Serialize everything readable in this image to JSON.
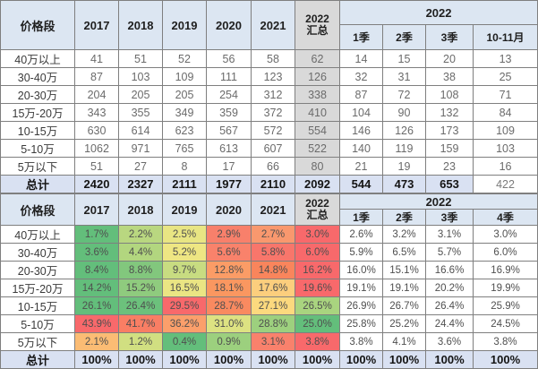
{
  "colors": {
    "header_blue": "#dce6f2",
    "summary_gray": "#d9d9d9",
    "total_row_blue": "#d9e1f2",
    "triangle_green": "#2f9e44",
    "grid_border": "#7f7f7f",
    "heat_min_green": "#63BE7B",
    "heat_mid_yellow": "#FFEB84",
    "heat_max_red": "#F8696B"
  },
  "tables": [
    {
      "id": "volume",
      "header": {
        "label": "价格段",
        "years": [
          "2017",
          "2018",
          "2019",
          "2020",
          "2021"
        ],
        "summary_lines": [
          "2022",
          "汇总"
        ],
        "group": "2022",
        "subs": [
          "1季",
          "2季",
          "3季",
          "10-11月"
        ]
      },
      "style": {
        "summary_gray": true,
        "triangle_col": 9,
        "total_last_plain": true
      },
      "rows": [
        {
          "label": "40万以上",
          "values": [
            "41",
            "51",
            "52",
            "56",
            "58",
            "62",
            "14",
            "15",
            "20",
            "13"
          ]
        },
        {
          "label": "30-40万",
          "values": [
            "87",
            "103",
            "109",
            "111",
            "123",
            "126",
            "32",
            "31",
            "38",
            "25"
          ]
        },
        {
          "label": "20-30万",
          "values": [
            "204",
            "205",
            "205",
            "254",
            "312",
            "338",
            "87",
            "72",
            "108",
            "71"
          ]
        },
        {
          "label": "15万-20万",
          "values": [
            "343",
            "355",
            "349",
            "359",
            "372",
            "410",
            "104",
            "90",
            "132",
            "84"
          ]
        },
        {
          "label": "10-15万",
          "values": [
            "630",
            "614",
            "623",
            "567",
            "572",
            "554",
            "146",
            "126",
            "173",
            "109"
          ]
        },
        {
          "label": "5-10万",
          "values": [
            "1062",
            "971",
            "765",
            "613",
            "607",
            "522",
            "140",
            "119",
            "159",
            "103"
          ]
        },
        {
          "label": "5万以下",
          "values": [
            "51",
            "27",
            "8",
            "17",
            "66",
            "80",
            "21",
            "19",
            "23",
            "16"
          ]
        }
      ],
      "total": {
        "label": "总计",
        "values": [
          "2420",
          "2327",
          "2111",
          "1977",
          "2110",
          "2092",
          "544",
          "473",
          "653",
          "422"
        ]
      }
    },
    {
      "id": "share",
      "header": {
        "label": "价格段",
        "years": [
          "2017",
          "2018",
          "2019",
          "2020",
          "2021"
        ],
        "summary_lines": [
          "2022",
          "汇总"
        ],
        "group": "2022",
        "subs": [
          "1季",
          "2季",
          "3季",
          "4季"
        ]
      },
      "style": {
        "heat": true
      },
      "rows": [
        {
          "label": "40万以上",
          "values": [
            "1.7%",
            "2.2%",
            "2.5%",
            "2.9%",
            "2.7%",
            "3.0%",
            "2.6%",
            "3.2%",
            "3.1%",
            "3.0%"
          ],
          "cell_colors": [
            "#63BE7B",
            "#B9D780",
            "#E8E583",
            "#F8806B",
            "#F9986E",
            "#F8696B"
          ]
        },
        {
          "label": "30-40万",
          "values": [
            "3.6%",
            "4.4%",
            "5.2%",
            "5.6%",
            "5.8%",
            "6.0%",
            "5.9%",
            "6.5%",
            "5.7%",
            "6.0%"
          ],
          "cell_colors": [
            "#63BE7B",
            "#B2D67F",
            "#EEE683",
            "#F9826B",
            "#F8766B",
            "#F8696B"
          ]
        },
        {
          "label": "20-30万",
          "values": [
            "8.4%",
            "8.8%",
            "9.7%",
            "12.8%",
            "14.8%",
            "16.2%",
            "16.0%",
            "15.1%",
            "16.6%",
            "16.9%"
          ],
          "cell_colors": [
            "#63BE7B",
            "#82C77D",
            "#C8DC81",
            "#FB9C66",
            "#F9855C",
            "#F8696B"
          ]
        },
        {
          "label": "15万-20万",
          "values": [
            "14.2%",
            "15.2%",
            "16.5%",
            "18.1%",
            "17.6%",
            "19.6%",
            "19.1%",
            "19.1%",
            "20.2%",
            "19.9%"
          ],
          "cell_colors": [
            "#63BE7B",
            "#8FCB7E",
            "#EAE583",
            "#FA9760",
            "#FCCE7D",
            "#F8696B"
          ]
        },
        {
          "label": "10-15万",
          "values": [
            "26.1%",
            "26.4%",
            "29.5%",
            "28.7%",
            "27.1%",
            "26.5%",
            "26.9%",
            "26.7%",
            "26.4%",
            "25.9%"
          ],
          "cell_colors": [
            "#63BE7B",
            "#6CC17C",
            "#F8696B",
            "#F98A60",
            "#FCD97E",
            "#A9D47F"
          ]
        },
        {
          "label": "5-10万",
          "values": [
            "43.9%",
            "41.7%",
            "36.2%",
            "31.0%",
            "28.8%",
            "25.0%",
            "25.8%",
            "25.2%",
            "24.4%",
            "24.5%"
          ],
          "cell_colors": [
            "#F8696B",
            "#F97E64",
            "#FB9F6B",
            "#DDE282",
            "#9DD07E",
            "#63BE7B"
          ]
        },
        {
          "label": "5万以下",
          "values": [
            "2.1%",
            "1.2%",
            "0.4%",
            "0.9%",
            "3.1%",
            "3.8%",
            "3.8%",
            "4.1%",
            "3.6%",
            "3.8%"
          ],
          "cell_colors": [
            "#FBBC74",
            "#D1DF81",
            "#63BE7B",
            "#9CD07E",
            "#F9816C",
            "#F8696B"
          ]
        }
      ],
      "total": {
        "label": "总计",
        "values": [
          "100%",
          "100%",
          "100%",
          "100%",
          "100%",
          "100%",
          "100%",
          "100%",
          "100%",
          "100%"
        ]
      }
    }
  ],
  "chart_data": [
    {
      "type": "table",
      "columns": [
        "价格段",
        "2017",
        "2018",
        "2019",
        "2020",
        "2021",
        "2022汇总",
        "2022 1季",
        "2022 2季",
        "2022 3季",
        "2022 10-11月"
      ],
      "rows": [
        [
          "40万以上",
          41,
          51,
          52,
          56,
          58,
          62,
          14,
          15,
          20,
          13
        ],
        [
          "30-40万",
          87,
          103,
          109,
          111,
          123,
          126,
          32,
          31,
          38,
          25
        ],
        [
          "20-30万",
          204,
          205,
          205,
          254,
          312,
          338,
          87,
          72,
          108,
          71
        ],
        [
          "15万-20万",
          343,
          355,
          349,
          359,
          372,
          410,
          104,
          90,
          132,
          84
        ],
        [
          "10-15万",
          630,
          614,
          623,
          567,
          572,
          554,
          146,
          126,
          173,
          109
        ],
        [
          "5-10万",
          1062,
          971,
          765,
          613,
          607,
          522,
          140,
          119,
          159,
          103
        ],
        [
          "5万以下",
          51,
          27,
          8,
          17,
          66,
          80,
          21,
          19,
          23,
          16
        ],
        [
          "总计",
          2420,
          2327,
          2111,
          1977,
          2110,
          2092,
          544,
          473,
          653,
          422
        ]
      ]
    },
    {
      "type": "table",
      "columns": [
        "价格段",
        "2017",
        "2018",
        "2019",
        "2020",
        "2021",
        "2022汇总",
        "2022 1季",
        "2022 2季",
        "2022 3季",
        "2022 4季"
      ],
      "rows": [
        [
          "40万以上",
          "1.7%",
          "2.2%",
          "2.5%",
          "2.9%",
          "2.7%",
          "3.0%",
          "2.6%",
          "3.2%",
          "3.1%",
          "3.0%"
        ],
        [
          "30-40万",
          "3.6%",
          "4.4%",
          "5.2%",
          "5.6%",
          "5.8%",
          "6.0%",
          "5.9%",
          "6.5%",
          "5.7%",
          "6.0%"
        ],
        [
          "20-30万",
          "8.4%",
          "8.8%",
          "9.7%",
          "12.8%",
          "14.8%",
          "16.2%",
          "16.0%",
          "15.1%",
          "16.6%",
          "16.9%"
        ],
        [
          "15万-20万",
          "14.2%",
          "15.2%",
          "16.5%",
          "18.1%",
          "17.6%",
          "19.6%",
          "19.1%",
          "19.1%",
          "20.2%",
          "19.9%"
        ],
        [
          "10-15万",
          "26.1%",
          "26.4%",
          "29.5%",
          "28.7%",
          "27.1%",
          "26.5%",
          "26.9%",
          "26.7%",
          "26.4%",
          "25.9%"
        ],
        [
          "5-10万",
          "43.9%",
          "41.7%",
          "36.2%",
          "31.0%",
          "28.8%",
          "25.0%",
          "25.8%",
          "25.2%",
          "24.4%",
          "24.5%"
        ],
        [
          "5万以下",
          "2.1%",
          "1.2%",
          "0.4%",
          "0.9%",
          "3.1%",
          "3.8%",
          "3.8%",
          "4.1%",
          "3.6%",
          "3.8%"
        ],
        [
          "总计",
          "100%",
          "100%",
          "100%",
          "100%",
          "100%",
          "100%",
          "100%",
          "100%",
          "100%",
          "100%"
        ]
      ]
    }
  ]
}
